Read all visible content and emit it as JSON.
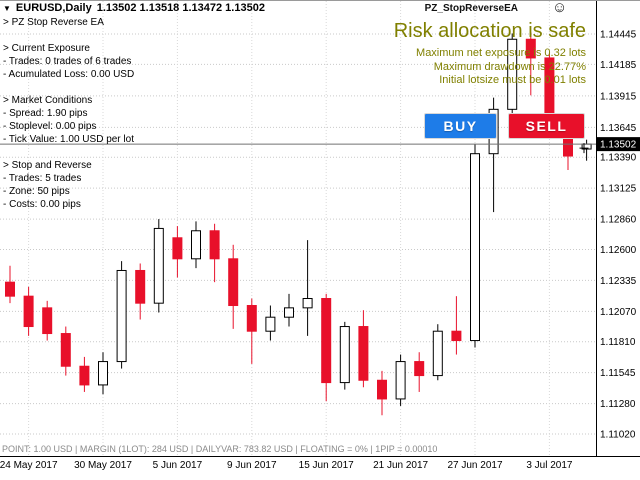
{
  "window": {
    "expand_icon": "▼",
    "title": "EURUSD,Daily",
    "ohlc": "1.13502 1.13518 1.13472 1.13502",
    "ea_name": "PZ_StopReverseEA",
    "ea_status_icon": "☺"
  },
  "comment_lines": [
    "> PZ Stop Reverse EA",
    "",
    "> Current Exposure",
    "- Trades: 0 trades of 6 trades",
    "- Acumulated Loss: 0.00 USD",
    "",
    "> Market Conditions",
    "- Spread: 1.90 pips",
    "- Stoplevel: 0.00 pips",
    "- Tick Value: 1.00 USD per lot",
    "",
    "> Stop and Reverse",
    "- Trades: 5 trades",
    "- Zone: 50 pips",
    "- Costs: 0.00 pips"
  ],
  "risk_panel": {
    "headline": "Risk allocation is safe",
    "lines": [
      "Maximum net exposure is 0.32 lots",
      "Maximum drawdown is 22.77%",
      "Initial lotsize must be 0.01 lots"
    ],
    "text_color": "#808000"
  },
  "trade_buttons": {
    "buy_label": "BUY",
    "sell_label": "SELL",
    "buy_color": "#1e7ce8",
    "sell_color": "#e8102a"
  },
  "status_bar": {
    "text": "POINT: 1.00 USD | MARGIN (1LOT): 284 USD | DAILYVAR: 783.82 USD | FLOATING = 0% | 1PIP = 0.00010"
  },
  "price_axis": {
    "labels": [
      "1.14445",
      "1.14185",
      "1.13915",
      "1.13645",
      "1.13390",
      "1.13125",
      "1.12860",
      "1.12600",
      "1.12335",
      "1.12070",
      "1.11810",
      "1.11545",
      "1.11280",
      "1.11020"
    ],
    "current_price": "1.13502"
  },
  "time_axis": {
    "labels": [
      {
        "text": "24 May 2017",
        "i": 1
      },
      {
        "text": "30 May 2017",
        "i": 5
      },
      {
        "text": "5 Jun 2017",
        "i": 9
      },
      {
        "text": "9 Jun 2017",
        "i": 13
      },
      {
        "text": "15 Jun 2017",
        "i": 17
      },
      {
        "text": "21 Jun 2017",
        "i": 21
      },
      {
        "text": "27 Jun 2017",
        "i": 25
      },
      {
        "text": "3 Jul 2017",
        "i": 29
      }
    ]
  },
  "chart_data": {
    "type": "candlestick",
    "symbol": "EURUSD",
    "timeframe": "Daily",
    "current_bid": 1.13502,
    "y_range": [
      1.109,
      1.1462
    ],
    "grid": true,
    "colors": {
      "bull_fill": "#ffffff",
      "bull_stroke": "#000000",
      "bear_fill": "#e8102a",
      "bear_stroke": "#e8102a",
      "grid": "#c9c9c9",
      "bid_line": "#707070"
    },
    "candles": [
      {
        "date": "23 May 2017",
        "o": 1.1232,
        "h": 1.1246,
        "l": 1.1214,
        "c": 1.122
      },
      {
        "date": "24 May 2017",
        "o": 1.122,
        "h": 1.1228,
        "l": 1.1186,
        "c": 1.1194
      },
      {
        "date": "25 May 2017",
        "o": 1.121,
        "h": 1.1216,
        "l": 1.1182,
        "c": 1.1188
      },
      {
        "date": "26 May 2017",
        "o": 1.1188,
        "h": 1.1194,
        "l": 1.1152,
        "c": 1.116
      },
      {
        "date": "29 May 2017",
        "o": 1.116,
        "h": 1.1168,
        "l": 1.1138,
        "c": 1.1144
      },
      {
        "date": "30 May 2017",
        "o": 1.1144,
        "h": 1.1172,
        "l": 1.1136,
        "c": 1.1164
      },
      {
        "date": "31 May 2017",
        "o": 1.1164,
        "h": 1.125,
        "l": 1.1158,
        "c": 1.1242
      },
      {
        "date": "1 Jun 2017",
        "o": 1.1242,
        "h": 1.1248,
        "l": 1.12,
        "c": 1.1214
      },
      {
        "date": "2 Jun 2017",
        "o": 1.1214,
        "h": 1.1286,
        "l": 1.1206,
        "c": 1.1278
      },
      {
        "date": "5 Jun 2017",
        "o": 1.127,
        "h": 1.128,
        "l": 1.1236,
        "c": 1.1252
      },
      {
        "date": "6 Jun 2017",
        "o": 1.1252,
        "h": 1.1284,
        "l": 1.1244,
        "c": 1.1276
      },
      {
        "date": "7 Jun 2017",
        "o": 1.1276,
        "h": 1.1282,
        "l": 1.1232,
        "c": 1.1252
      },
      {
        "date": "8 Jun 2017",
        "o": 1.1252,
        "h": 1.1264,
        "l": 1.1192,
        "c": 1.1212
      },
      {
        "date": "9 Jun 2017",
        "o": 1.1212,
        "h": 1.1218,
        "l": 1.1162,
        "c": 1.119
      },
      {
        "date": "12 Jun 2017",
        "o": 1.119,
        "h": 1.1212,
        "l": 1.1182,
        "c": 1.1202
      },
      {
        "date": "13 Jun 2017",
        "o": 1.1202,
        "h": 1.1222,
        "l": 1.1194,
        "c": 1.121
      },
      {
        "date": "14 Jun 2017",
        "o": 1.121,
        "h": 1.1268,
        "l": 1.1186,
        "c": 1.1218
      },
      {
        "date": "15 Jun 2017",
        "o": 1.1218,
        "h": 1.1222,
        "l": 1.113,
        "c": 1.1146
      },
      {
        "date": "16 Jun 2017",
        "o": 1.1146,
        "h": 1.1198,
        "l": 1.114,
        "c": 1.1194
      },
      {
        "date": "19 Jun 2017",
        "o": 1.1194,
        "h": 1.1208,
        "l": 1.1142,
        "c": 1.1148
      },
      {
        "date": "20 Jun 2017",
        "o": 1.1148,
        "h": 1.1156,
        "l": 1.1118,
        "c": 1.1132
      },
      {
        "date": "21 Jun 2017",
        "o": 1.1132,
        "h": 1.117,
        "l": 1.1126,
        "c": 1.1164
      },
      {
        "date": "22 Jun 2017",
        "o": 1.1164,
        "h": 1.1172,
        "l": 1.1138,
        "c": 1.1152
      },
      {
        "date": "23 Jun 2017",
        "o": 1.1152,
        "h": 1.1196,
        "l": 1.1148,
        "c": 1.119
      },
      {
        "date": "26 Jun 2017",
        "o": 1.119,
        "h": 1.122,
        "l": 1.117,
        "c": 1.1182
      },
      {
        "date": "27 Jun 2017",
        "o": 1.1182,
        "h": 1.135,
        "l": 1.1176,
        "c": 1.1342
      },
      {
        "date": "28 Jun 2017",
        "o": 1.1342,
        "h": 1.139,
        "l": 1.1292,
        "c": 1.138
      },
      {
        "date": "29 Jun 2017",
        "o": 1.138,
        "h": 1.1445,
        "l": 1.1374,
        "c": 1.144
      },
      {
        "date": "30 Jun 2017",
        "o": 1.144,
        "h": 1.1446,
        "l": 1.1392,
        "c": 1.1424
      },
      {
        "date": "3 Jul 2017",
        "o": 1.1424,
        "h": 1.1428,
        "l": 1.1356,
        "c": 1.1364
      },
      {
        "date": "4 Jul 2017",
        "o": 1.1364,
        "h": 1.137,
        "l": 1.1328,
        "c": 1.134
      },
      {
        "date": "5 Jul 2017",
        "o": 1.1346,
        "h": 1.1354,
        "l": 1.1336,
        "c": 1.13502
      }
    ]
  }
}
